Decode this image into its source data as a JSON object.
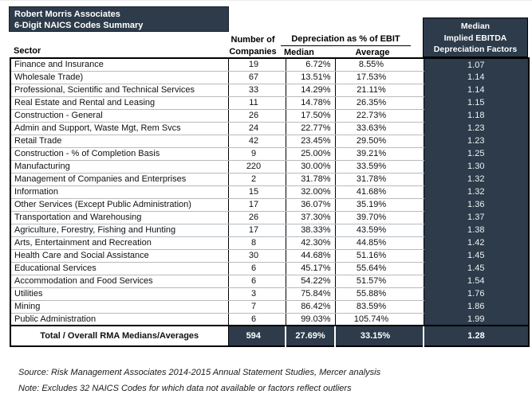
{
  "title": {
    "line1": "Robert Morris Associates",
    "line2": "6-Digit NAICS Codes Summary"
  },
  "header": {
    "sector": "Sector",
    "companies_line1": "Number of",
    "companies_line2": "Companies",
    "depreciation_group": "Depreciation as % of EBIT",
    "median": "Median",
    "average": "Average",
    "factors_line1": "Median",
    "factors_line2": "Implied EBITDA",
    "factors_line3": "Depreciation Factors"
  },
  "rows": [
    {
      "sector": "Finance and Insurance",
      "companies": "19",
      "median": "6.72%",
      "average": "8.55%",
      "factor": "1.07"
    },
    {
      "sector": "Wholesale Trade)",
      "companies": "67",
      "median": "13.51%",
      "average": "17.53%",
      "factor": "1.14"
    },
    {
      "sector": "Professional, Scientific and Technical Services",
      "companies": "33",
      "median": "14.29%",
      "average": "21.11%",
      "factor": "1.14"
    },
    {
      "sector": "Real Estate and Rental and Leasing",
      "companies": "11",
      "median": "14.78%",
      "average": "26.35%",
      "factor": "1.15"
    },
    {
      "sector": "Construction - General",
      "companies": "26",
      "median": "17.50%",
      "average": "22.73%",
      "factor": "1.18"
    },
    {
      "sector": "Admin and Support, Waste Mgt, Rem Svcs",
      "companies": "24",
      "median": "22.77%",
      "average": "33.63%",
      "factor": "1.23"
    },
    {
      "sector": "Retail Trade",
      "companies": "42",
      "median": "23.45%",
      "average": "29.50%",
      "factor": "1.23"
    },
    {
      "sector": "Construction - % of Completion Basis",
      "companies": "9",
      "median": "25.00%",
      "average": "39.21%",
      "factor": "1.25"
    },
    {
      "sector": "Manufacturing",
      "companies": "220",
      "median": "30.00%",
      "average": "33.59%",
      "factor": "1.30"
    },
    {
      "sector": "Management of Companies and Enterprises",
      "companies": "2",
      "median": "31.78%",
      "average": "31.78%",
      "factor": "1.32"
    },
    {
      "sector": "Information",
      "companies": "15",
      "median": "32.00%",
      "average": "41.68%",
      "factor": "1.32"
    },
    {
      "sector": "Other Services (Except Public Administration)",
      "companies": "17",
      "median": "36.07%",
      "average": "35.19%",
      "factor": "1.36"
    },
    {
      "sector": "Transportation and Warehousing",
      "companies": "26",
      "median": "37.30%",
      "average": "39.70%",
      "factor": "1.37"
    },
    {
      "sector": "Agriculture, Forestry, Fishing and Hunting",
      "companies": "17",
      "median": "38.33%",
      "average": "43.59%",
      "factor": "1.38"
    },
    {
      "sector": "Arts, Entertainment and Recreation",
      "companies": "8",
      "median": "42.30%",
      "average": "44.85%",
      "factor": "1.42"
    },
    {
      "sector": "Health Care and Social Assistance",
      "companies": "30",
      "median": "44.68%",
      "average": "51.16%",
      "factor": "1.45"
    },
    {
      "sector": "Educational Services",
      "companies": "6",
      "median": "45.17%",
      "average": "55.64%",
      "factor": "1.45"
    },
    {
      "sector": "Accommodation and Food Services",
      "companies": "6",
      "median": "54.22%",
      "average": "51.57%",
      "factor": "1.54"
    },
    {
      "sector": "Utilities",
      "companies": "3",
      "median": "75.84%",
      "average": "55.88%",
      "factor": "1.76"
    },
    {
      "sector": "Mining",
      "companies": "7",
      "median": "86.42%",
      "average": "83.59%",
      "factor": "1.86"
    },
    {
      "sector": "Public Administration",
      "companies": "6",
      "median": "99.03%",
      "average": "105.74%",
      "factor": "1.99"
    }
  ],
  "total": {
    "label": "Total / Overall RMA Medians/Averages",
    "companies": "594",
    "median": "27.69%",
    "average": "33.15%",
    "factor": "1.28"
  },
  "footnotes": {
    "source": "Source: Risk Management Associates 2014-2015 Annual Statement Studies, Mercer analysis",
    "note": "Note: Excludes 32 NAICS Codes for which data not available or factors reflect outliers"
  },
  "colors": {
    "navy": "#2d3b4a",
    "rowline": "#b7bbbf"
  }
}
